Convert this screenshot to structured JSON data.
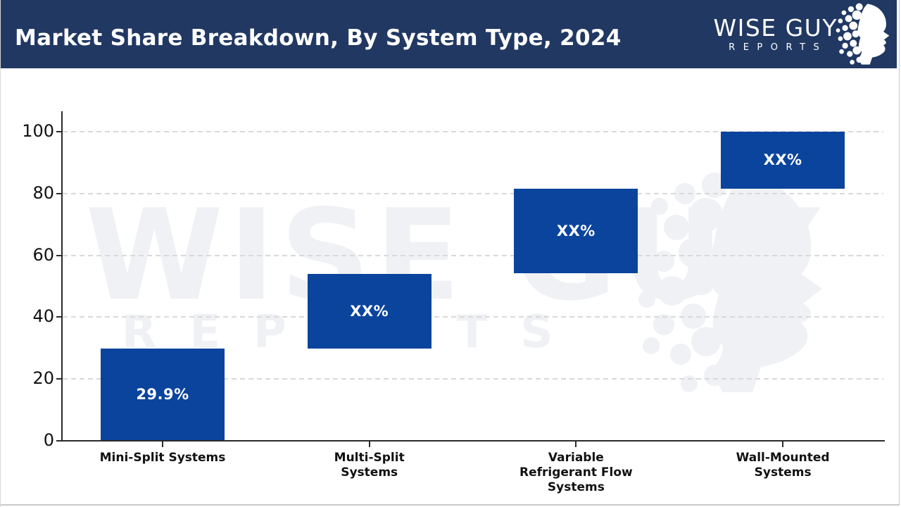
{
  "page": {
    "header": {
      "title": "Market Share Breakdown, By System Type, 2024",
      "logo": {
        "line1": "WISE GUY",
        "line2": "REPORTS"
      }
    },
    "watermark": {
      "line1": "WISE GUY",
      "line2": "REPORTS"
    }
  },
  "chart_data": {
    "type": "bar",
    "subtype": "floating-segment-waterfall",
    "title": "Market Share Breakdown, By System Type, 2024",
    "categories": [
      "Mini-Split Systems",
      "Multi-Split\nSystems",
      "Variable\nRefrigerant Flow\nSystems",
      "Wall-Mounted\nSystems"
    ],
    "segments": [
      {
        "category": "Mini-Split Systems",
        "start": 0,
        "end": 29.9,
        "label": "29.9%"
      },
      {
        "category": "Multi-Split Systems",
        "start": 29.9,
        "end": 54.1,
        "label": "XX%"
      },
      {
        "category": "Variable Refrigerant Flow Systems",
        "start": 54.1,
        "end": 81.6,
        "label": "XX%"
      },
      {
        "category": "Wall-Mounted Systems",
        "start": 81.6,
        "end": 100.0,
        "label": "XX%"
      }
    ],
    "xlabel": "",
    "ylabel": "",
    "ylim": [
      0,
      100
    ],
    "yticks": [
      0,
      20,
      40,
      60,
      80,
      100
    ],
    "grid": "horizontal-dashed",
    "legend": null,
    "colors": {
      "bar": "#0a449c",
      "bar_label": "#ffffff",
      "grid": "#d9d9d9",
      "axis": "#2b2b2b",
      "tick_label": "#111111",
      "header_bg": "#213863",
      "header_text": "#ffffff",
      "watermark": "#eff1f4"
    }
  }
}
